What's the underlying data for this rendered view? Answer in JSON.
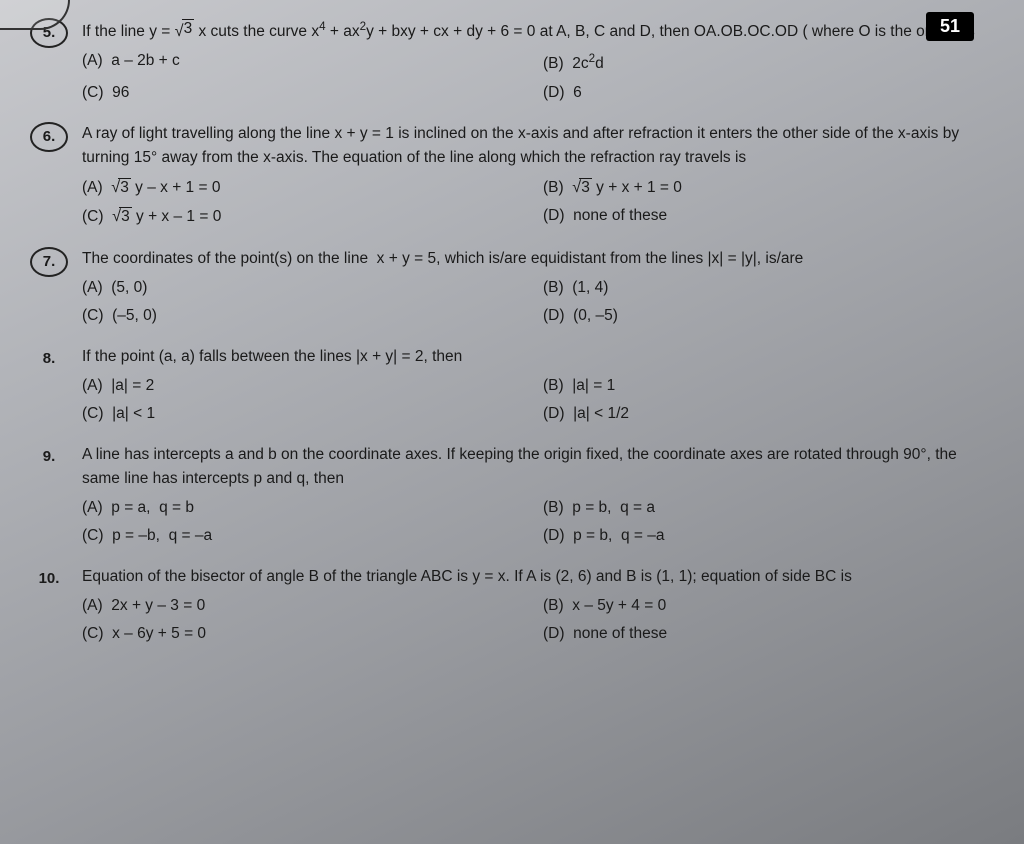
{
  "page_number": "51",
  "questions": [
    {
      "num": "5.",
      "circle": true,
      "stem": "If the line y = <span class='sqrt'><span class='sqrt-sym'>√</span><span class='sqrt-arg'>3</span></span> x cuts the curve x<sup>4</sup> + ax<sup>2</sup>y + bxy + cx + dy + 6 = 0 at A, B, C and D, then OA.OB.OC.OD ( where O is the origin) is",
      "opts": {
        "A": "a – 2b + c",
        "B": "2c<sup>2</sup>d",
        "C": "96",
        "D": "6"
      }
    },
    {
      "num": "6.",
      "circle": true,
      "stem": "A ray of light travelling along the line x + y = 1 is inclined on the x-axis and after refraction it enters the other side of the x-axis by turning 15° away from the x-axis. The equation of the line along which the refraction ray travels is",
      "opts": {
        "A": "<span class='sqrt'><span class='sqrt-sym'>√</span><span class='sqrt-arg'>3</span></span> y – x + 1 = 0",
        "B": "<span class='sqrt'><span class='sqrt-sym'>√</span><span class='sqrt-arg'>3</span></span> y + x + 1 = 0",
        "C": "<span class='sqrt'><span class='sqrt-sym'>√</span><span class='sqrt-arg'>3</span></span> y + x – 1 = 0",
        "D": "none of these"
      }
    },
    {
      "num": "7.",
      "circle": true,
      "stem": "The coordinates of the point(s) on the line &nbsp;x + y = 5, which is/are equidistant from the lines |x| = |y|, is/are",
      "opts": {
        "A": "(5, 0)",
        "B": "(1, 4)",
        "C": "(–5, 0)",
        "D": "(0, –5)"
      }
    },
    {
      "num": "8.",
      "circle": false,
      "stem": "If the point (a, a) falls between the lines |x + y| = 2, then",
      "opts": {
        "A": "|a| = 2",
        "B": "|a| = 1",
        "C": "|a| &lt; 1",
        "D": "|a| &lt; 1/2"
      }
    },
    {
      "num": "9.",
      "circle": false,
      "stem": "A line has intercepts a and b on the coordinate axes. If keeping the origin fixed, the coordinate axes are rotated through 90°, the same line has intercepts p and q, then",
      "opts": {
        "A": "p = a,&nbsp;&nbsp;q = b",
        "B": "p = b,&nbsp;&nbsp;q = a",
        "C": "p = –b,&nbsp;&nbsp;q = –a",
        "D": "p = b,&nbsp;&nbsp;q = –a"
      }
    },
    {
      "num": "10.",
      "circle": false,
      "stem": "Equation of the bisector of angle B of the triangle ABC is y = x. If A is (2, 6) and B is (1, 1); equation of side BC is",
      "opts": {
        "A": "2x + y – 3 = 0",
        "B": "x – 5y + 4 = 0",
        "C": "x – 6y + 5 = 0",
        "D": "none of these"
      }
    }
  ]
}
